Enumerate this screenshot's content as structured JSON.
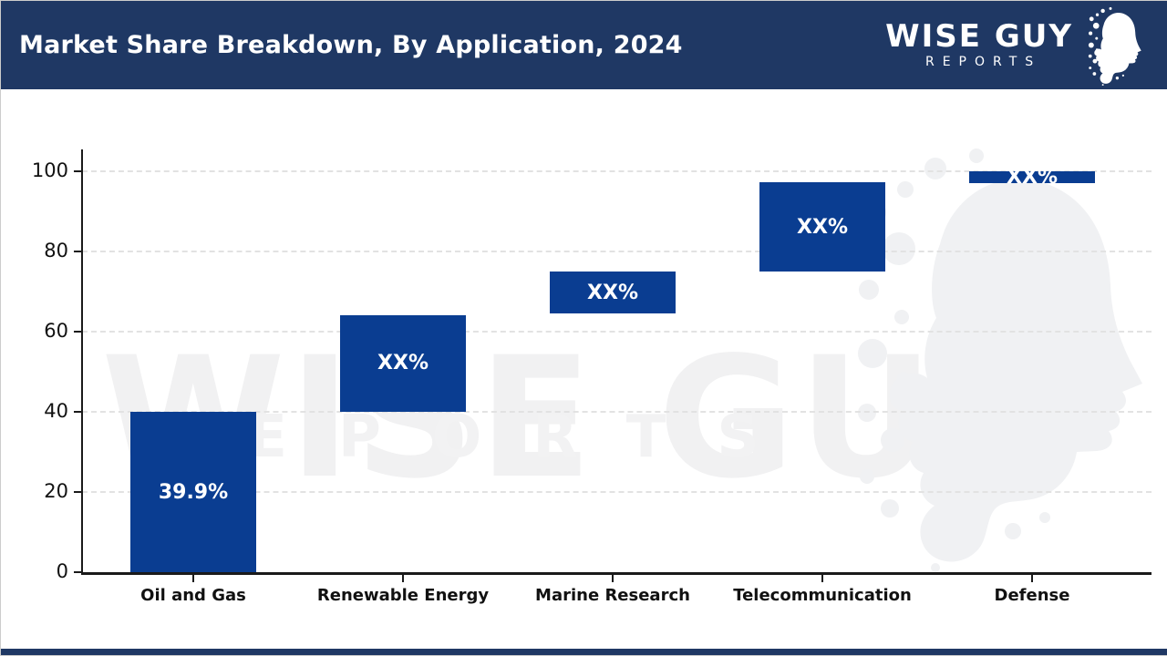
{
  "header": {
    "title": "Market Share Breakdown, By Application, 2024",
    "logo": {
      "line1": "WISE GUY",
      "line2": "REPORTS"
    }
  },
  "watermark": {
    "line1": "WISE GUY",
    "line2": "REPORTS"
  },
  "chart_data": {
    "type": "bar",
    "subtype": "waterfall",
    "title": "Market Share Breakdown, By Application, 2024",
    "xlabel": "",
    "ylabel": "",
    "categories": [
      "Oil and Gas",
      "Renewable Energy",
      "Marine Research",
      "Telecommunication",
      "Defense"
    ],
    "segments": [
      {
        "category": "Oil and Gas",
        "start": 0,
        "end": 39.9,
        "label": "39.9%"
      },
      {
        "category": "Renewable Energy",
        "start": 40.1,
        "end": 64.2,
        "label": "XX%"
      },
      {
        "category": "Marine Research",
        "start": 64.5,
        "end": 75.0,
        "label": "XX%"
      },
      {
        "category": "Telecommunication",
        "start": 75.0,
        "end": 97.2,
        "label": "XX%"
      },
      {
        "category": "Defense",
        "start": 97.1,
        "end": 100.0,
        "label": "XX%"
      }
    ],
    "y_ticks": [
      0,
      20,
      40,
      60,
      80,
      100
    ],
    "ylim": [
      0,
      105
    ],
    "grid": "horizontal-dashed",
    "legend": "none",
    "bar_color": "#0a3d91",
    "bar_label_color": "#ffffff",
    "axis_color": "#1a1a1a",
    "grid_color": "#e2e2e2",
    "header_color": "#1f3864",
    "watermark_color": "#f1f1f2"
  }
}
